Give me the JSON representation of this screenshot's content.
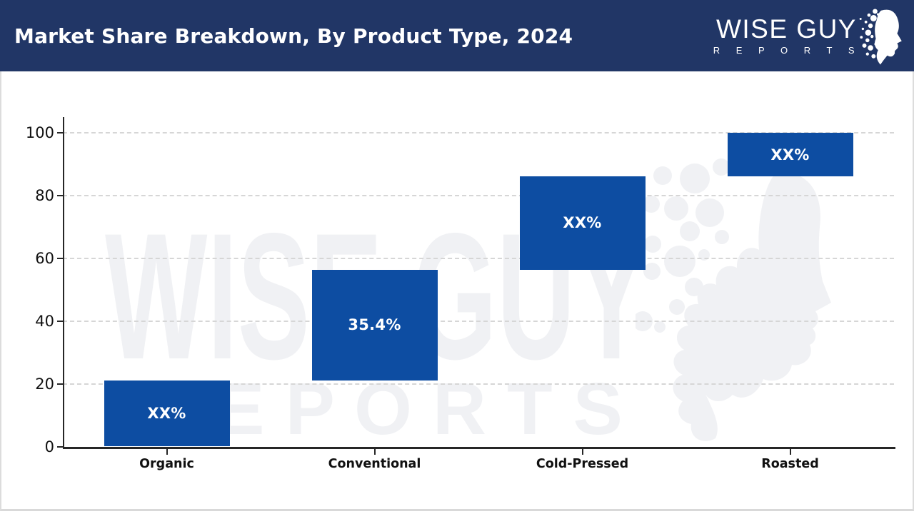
{
  "header": {
    "title": "Market Share Breakdown, By Product Type, 2024",
    "brand": {
      "line1": "WISE GUY",
      "line2": "R E P O R T S"
    }
  },
  "watermark": {
    "line1": "WISE GUY",
    "line2": "R E P O R T S"
  },
  "icons": {
    "brand_head": "wiseguy-head-profile-dots-icon",
    "watermark_head": "wiseguy-head-profile-dots-watermark"
  },
  "chart_data": {
    "type": "bar",
    "subtype": "floating-waterfall",
    "title": "Market Share Breakdown, By Product Type, 2024",
    "categories": [
      "Organic",
      "Conventional",
      "Cold-Pressed",
      "Roasted"
    ],
    "segments": [
      {
        "category": "Organic",
        "start": 0,
        "end": 21,
        "label": "XX%"
      },
      {
        "category": "Conventional",
        "start": 21,
        "end": 56.4,
        "label": "35.4%"
      },
      {
        "category": "Cold-Pressed",
        "start": 56.4,
        "end": 86.1,
        "label": "XX%"
      },
      {
        "category": "Roasted",
        "start": 86.1,
        "end": 100,
        "label": "XX%"
      }
    ],
    "yticks": [
      0,
      20,
      40,
      60,
      80,
      100
    ],
    "ylim": [
      0,
      105
    ],
    "xlabel": "",
    "ylabel": "",
    "grid": "horizontal-dashed",
    "legend": "none",
    "colors": {
      "bar": "#0d4da2",
      "bar_label": "#ffffff",
      "header_bg": "#213666",
      "grid": "#d6d6d6",
      "axis": "#262626",
      "watermark": "#f0f1f4"
    }
  }
}
